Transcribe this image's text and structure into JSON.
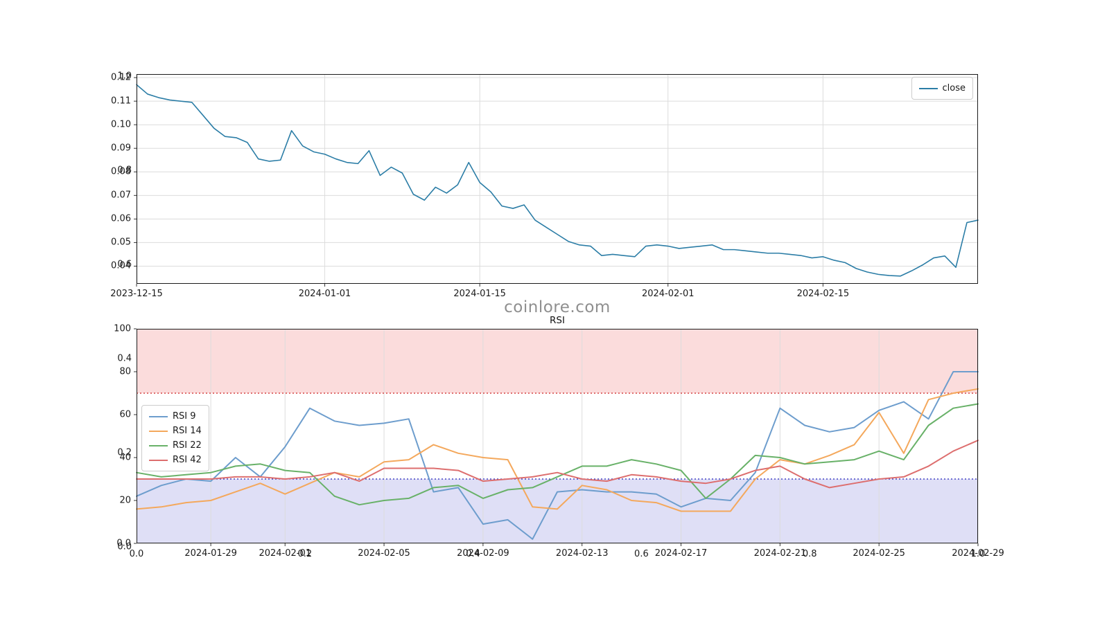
{
  "figure": {
    "watermark": "coinlore.com",
    "background": "#ffffff",
    "fraction_axis": {
      "x_labels": [
        "0.0",
        "0.2",
        "0.4",
        "0.6",
        "0.8",
        "1.0"
      ],
      "y_labels": [
        "1.0",
        "0.8",
        "0.6",
        "0.4",
        "0.2",
        "0.0"
      ]
    }
  },
  "chart_data": [
    {
      "id": "price",
      "type": "line",
      "legend": {
        "position": "upper-right",
        "entries": [
          "close"
        ]
      },
      "x_tick_labels": [
        "2023-12-15",
        "2024-01-01",
        "2024-01-15",
        "2024-02-01",
        "2024-02-15"
      ],
      "x_tick_indices": [
        0,
        17,
        31,
        48,
        62
      ],
      "y_tick_values": [
        0.04,
        0.05,
        0.06,
        0.07,
        0.08,
        0.09,
        0.1,
        0.11,
        0.12
      ],
      "y_tick_labels": [
        "0.04",
        "0.05",
        "0.06",
        "0.07",
        "0.08",
        "0.09",
        "0.10",
        "0.11",
        "0.12"
      ],
      "ylim": [
        0.0325,
        0.1215
      ],
      "grid": true,
      "series": [
        {
          "name": "close",
          "color": "#2b7da6",
          "width": 1.6,
          "values": [
            0.117,
            0.113,
            0.1115,
            0.1105,
            0.11,
            0.1095,
            0.104,
            0.0985,
            0.095,
            0.0945,
            0.0925,
            0.0855,
            0.0845,
            0.085,
            0.0975,
            0.091,
            0.0885,
            0.0875,
            0.0855,
            0.084,
            0.0835,
            0.089,
            0.0785,
            0.082,
            0.0795,
            0.0705,
            0.068,
            0.0735,
            0.071,
            0.0745,
            0.084,
            0.0755,
            0.0715,
            0.0655,
            0.0645,
            0.066,
            0.0595,
            0.0565,
            0.0535,
            0.0505,
            0.049,
            0.0485,
            0.0445,
            0.045,
            0.0445,
            0.044,
            0.0485,
            0.049,
            0.0485,
            0.0475,
            0.048,
            0.0485,
            0.049,
            0.047,
            0.047,
            0.0465,
            0.046,
            0.0455,
            0.0455,
            0.045,
            0.0445,
            0.0435,
            0.044,
            0.0425,
            0.0415,
            0.039,
            0.0375,
            0.0365,
            0.036,
            0.0358,
            0.038,
            0.0405,
            0.0435,
            0.0443,
            0.0395,
            0.0585,
            0.0595
          ]
        }
      ]
    },
    {
      "id": "rsi",
      "type": "line",
      "title": "RSI",
      "legend": {
        "position": "center-left",
        "entries": [
          "RSI 9",
          "RSI 14",
          "RSI 22",
          "RSI 42"
        ]
      },
      "x_tick_labels": [
        "2024-01-29",
        "2024-02-01",
        "2024-02-05",
        "2024-02-09",
        "2024-02-13",
        "2024-02-17",
        "2024-02-21",
        "2024-02-25",
        "2024-02-29"
      ],
      "x_tick_indices": [
        3,
        6,
        10,
        14,
        18,
        22,
        26,
        30,
        34
      ],
      "y_tick_values": [
        0,
        20,
        40,
        60,
        80,
        100
      ],
      "y_tick_labels": [
        "0.0",
        "20",
        "40",
        "60",
        "80",
        "100"
      ],
      "ylim": [
        0,
        100
      ],
      "overbought": {
        "level": 70,
        "line_color": "#cc2222",
        "band_color": "#fbdcdc",
        "band_range": [
          70,
          100
        ]
      },
      "oversold": {
        "level": 30,
        "line_color": "#2222bb",
        "band_color": "#dfdff6",
        "band_range": [
          0,
          30
        ]
      },
      "series": [
        {
          "name": "RSI 9",
          "color": "#6d9dcd",
          "width": 2,
          "values": [
            22,
            27,
            30,
            29,
            40,
            31,
            45,
            63,
            57,
            55,
            56,
            58,
            24,
            26,
            9,
            11,
            2,
            24,
            25,
            24,
            24,
            23,
            17,
            21,
            20,
            33,
            63,
            55,
            52,
            54,
            62,
            66,
            58,
            80,
            80
          ]
        },
        {
          "name": "RSI 14",
          "color": "#f4a85c",
          "width": 2,
          "values": [
            16,
            17,
            19,
            20,
            24,
            28,
            23,
            28,
            33,
            31,
            38,
            39,
            46,
            42,
            40,
            39,
            17,
            16,
            27,
            25,
            20,
            19,
            15,
            15,
            15,
            30,
            39,
            37,
            41,
            46,
            61,
            42,
            67,
            70,
            72
          ]
        },
        {
          "name": "RSI 22",
          "color": "#68b168",
          "width": 2,
          "values": [
            33,
            31,
            32,
            33,
            36,
            37,
            34,
            33,
            22,
            18,
            20,
            21,
            26,
            27,
            21,
            25,
            26,
            31,
            36,
            36,
            39,
            37,
            34,
            21,
            30,
            41,
            40,
            37,
            38,
            39,
            43,
            39,
            55,
            63,
            65
          ]
        },
        {
          "name": "RSI 42",
          "color": "#dd6e6e",
          "width": 2,
          "values": [
            30,
            30,
            30,
            30,
            31,
            31,
            30,
            31,
            33,
            29,
            35,
            35,
            35,
            34,
            29,
            30,
            31,
            33,
            30,
            29,
            32,
            31,
            29,
            28,
            30,
            34,
            36,
            30,
            26,
            28,
            30,
            31,
            36,
            43,
            48
          ]
        }
      ]
    }
  ]
}
